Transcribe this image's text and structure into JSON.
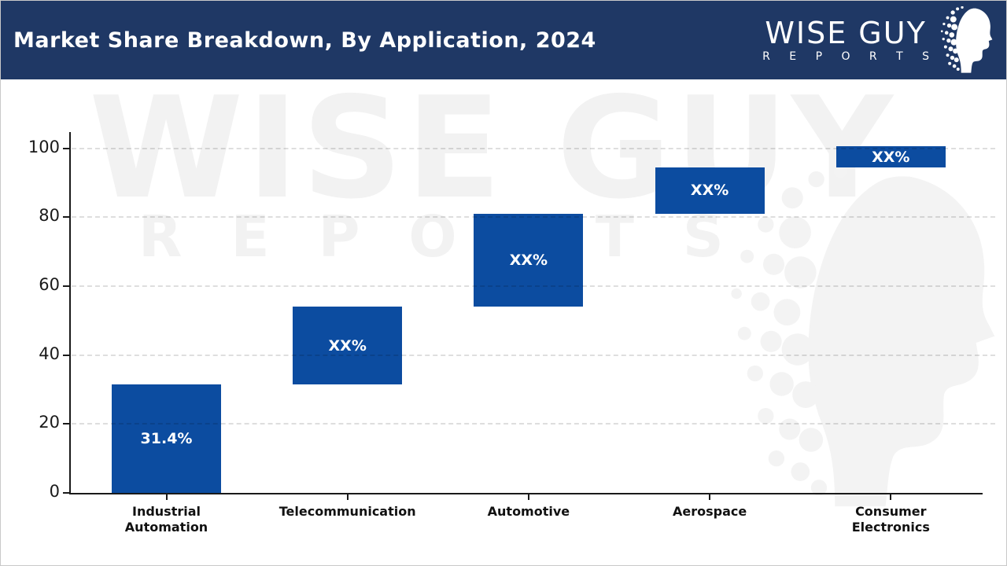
{
  "header": {
    "title": "Market Share Breakdown, By Application, 2024",
    "logo_line1": "WISE GUY",
    "logo_line2": "R E P O R T S",
    "bg_color": "#1f3865"
  },
  "watermark": {
    "line1": "WISE GUY",
    "line2": "REPORTS"
  },
  "chart_data": {
    "type": "bar",
    "subtype": "waterfall",
    "title": "Market Share Breakdown, By Application, 2024",
    "categories": [
      "Industrial Automation",
      "Telecommunication",
      "Automotive",
      "Aerospace",
      "Consumer Electronics"
    ],
    "category_lines": [
      [
        "Industrial",
        "Automation"
      ],
      [
        "Telecommunication"
      ],
      [
        "Automotive"
      ],
      [
        "Aerospace"
      ],
      [
        "Consumer",
        "Electronics"
      ]
    ],
    "segments": [
      {
        "category": "Industrial Automation",
        "start": 0,
        "end": 31.4,
        "label": "31.4%"
      },
      {
        "category": "Telecommunication",
        "start": 31.4,
        "end": 54,
        "label": "XX%"
      },
      {
        "category": "Automotive",
        "start": 54,
        "end": 81,
        "label": "XX%"
      },
      {
        "category": "Aerospace",
        "start": 81,
        "end": 94.4,
        "label": "XX%"
      },
      {
        "category": "Consumer Electronics",
        "start": 94.4,
        "end": 100.5,
        "label": "XX%"
      }
    ],
    "yticks": [
      0,
      20,
      40,
      60,
      80,
      100
    ],
    "ylim": [
      0,
      104
    ],
    "xlabel": "",
    "ylabel": "",
    "grid": "dashed horizontal",
    "legend": "none",
    "bar_color": "#0c4ca0"
  }
}
